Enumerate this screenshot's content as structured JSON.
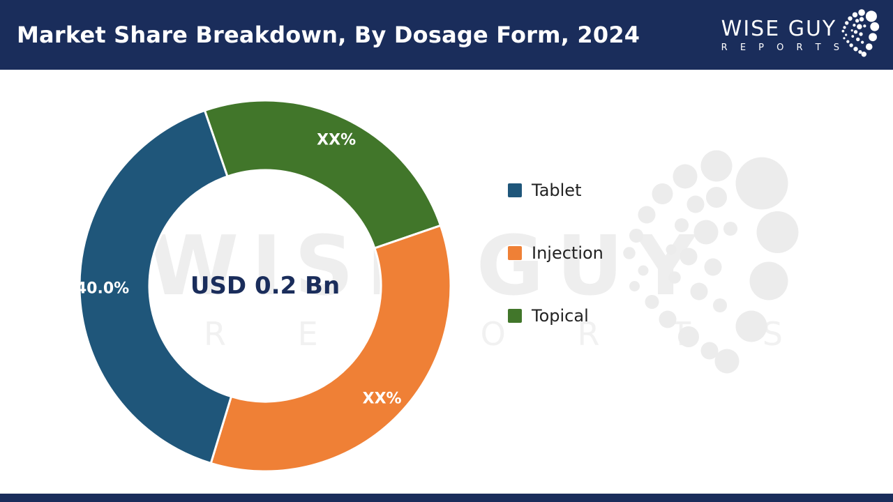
{
  "header": {
    "title": "Market Share Breakdown, By Dosage Form, 2024",
    "logo": {
      "line1": "WISE GUY",
      "line2": "R E P O R T S"
    }
  },
  "colors": {
    "header_bg": "#1a2d5b",
    "tablet": "#1f567a",
    "injection": "#ef8036",
    "topical": "#41762a"
  },
  "chart_data": {
    "type": "pie",
    "subtype": "donut",
    "title": "Market Share Breakdown, By Dosage Form, 2024",
    "center_label": "USD 0.2 Bn",
    "start_angle_deg": -19,
    "segments": [
      {
        "label": "Topical",
        "value_pct": 25,
        "display": "XX%",
        "color": "#41762a"
      },
      {
        "label": "Injection",
        "value_pct": 35,
        "display": "XX%",
        "color": "#ef8036"
      },
      {
        "label": "Tablet",
        "value_pct": 40,
        "display": "40.0%",
        "color": "#1f567a"
      }
    ],
    "legend_position": "right"
  },
  "legend": {
    "items": [
      {
        "label": "Tablet",
        "color": "#1f567a"
      },
      {
        "label": "Injection",
        "color": "#ef8036"
      },
      {
        "label": "Topical",
        "color": "#41762a"
      }
    ]
  },
  "watermark": {
    "line1": "WISE GUY",
    "line2": "R E P O R T S"
  }
}
